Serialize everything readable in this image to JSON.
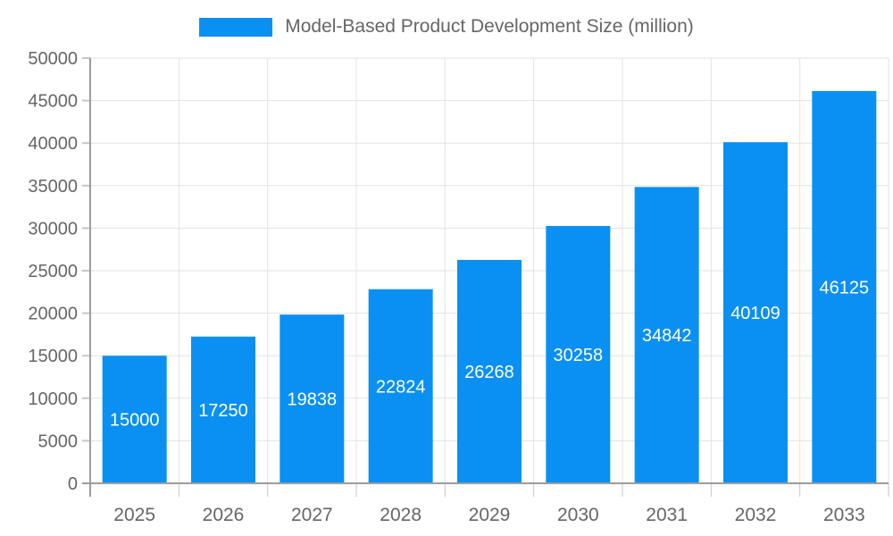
{
  "legend": {
    "label": "Model-Based Product Development Size (million)"
  },
  "colors": {
    "bar": "#0A90F2",
    "grid": "#E3E3E3",
    "axis": "#9C9C9C",
    "tick": "#C6C6C6",
    "text": "#666666",
    "bar_label": "#FFFFFF",
    "background": "#FFFFFF"
  },
  "chart_data": {
    "type": "bar",
    "categories": [
      "2025",
      "2026",
      "2027",
      "2028",
      "2029",
      "2030",
      "2031",
      "2032",
      "2033"
    ],
    "values": [
      15000,
      17250,
      19838,
      22824,
      26268,
      30258,
      34842,
      40109,
      46125
    ],
    "title": "Model-Based Product Development Size (million)",
    "xlabel": "",
    "ylabel": "",
    "ylim": [
      0,
      50000
    ],
    "ytick_step": 5000,
    "ytick_labels": [
      "0",
      "5000",
      "10000",
      "15000",
      "20000",
      "25000",
      "30000",
      "35000",
      "40000",
      "45000",
      "50000"
    ],
    "grid": true,
    "legend_position": "top",
    "bar_value_labels": "inside-center"
  }
}
